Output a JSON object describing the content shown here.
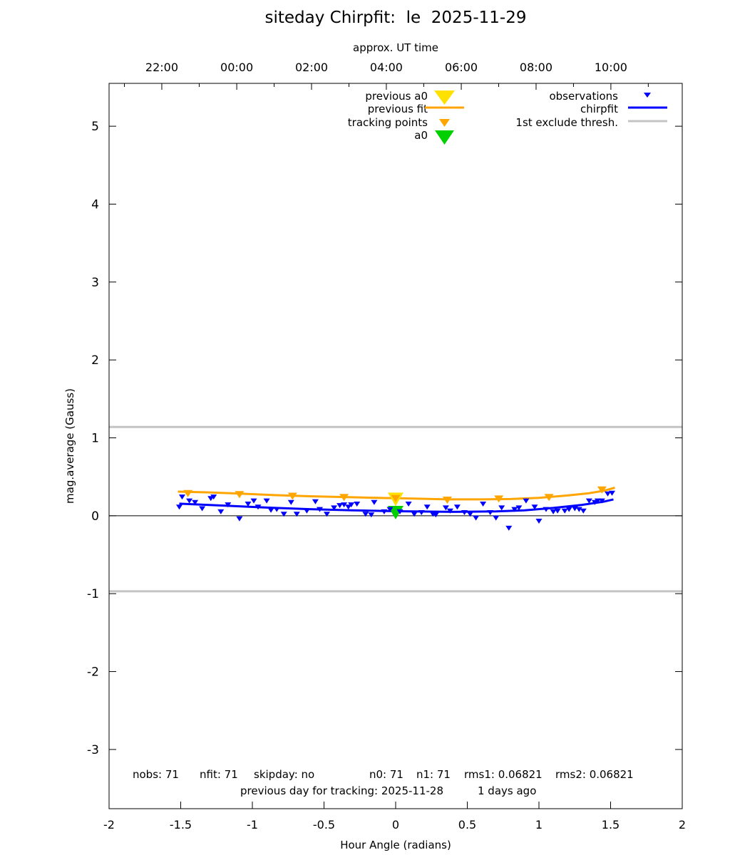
{
  "chart_data": {
    "type": "scatter",
    "title": "siteday Chirpfit:  le  2025-11-29",
    "top_axis": {
      "label": "approx. UT time",
      "major_ticks": [
        {
          "label": "22:00",
          "ha": -1.632
        },
        {
          "label": "00:00",
          "ha": -1.109
        },
        {
          "label": "02:00",
          "ha": -0.587
        },
        {
          "label": "04:00",
          "ha": -0.065
        },
        {
          "label": "06:00",
          "ha": 0.458
        },
        {
          "label": "08:00",
          "ha": 0.98
        },
        {
          "label": "10:00",
          "ha": 1.502
        }
      ],
      "minor_ticks_ha": [
        -1.893,
        -1.371,
        -0.848,
        -0.326,
        0.196,
        0.719,
        1.241,
        1.763
      ]
    },
    "x_axis": {
      "label": "Hour Angle (radians)",
      "range": [
        -2,
        2
      ],
      "ticks": [
        -2,
        -1.5,
        -1,
        -0.5,
        0,
        0.5,
        1,
        1.5,
        2
      ]
    },
    "y_axis": {
      "label": "mag.average (Gauss)",
      "range": [
        -3.76,
        5.55
      ],
      "ticks": [
        -3,
        -2,
        -1,
        0,
        1,
        2,
        3,
        4,
        5
      ]
    },
    "grid": false,
    "zero_line": {
      "color": "#000000",
      "value": 0
    },
    "exclude_thresholds": {
      "color": "#c4c4c4",
      "values": [
        1.14,
        -0.97
      ]
    },
    "series": {
      "observations": {
        "color": "#0000ff",
        "marker": "triangle-down-tiny",
        "points": [
          [
            -1.51,
            0.11
          ],
          [
            -1.49,
            0.24
          ],
          [
            -1.44,
            0.19
          ],
          [
            -1.4,
            0.17
          ],
          [
            -1.35,
            0.09
          ],
          [
            -1.29,
            0.22
          ],
          [
            -1.27,
            0.24
          ],
          [
            -1.22,
            0.05
          ],
          [
            -1.17,
            0.14
          ],
          [
            -1.09,
            -0.04
          ],
          [
            -1.03,
            0.15
          ],
          [
            -0.99,
            0.19
          ],
          [
            -0.96,
            0.11
          ],
          [
            -0.9,
            0.19
          ],
          [
            -0.87,
            0.07
          ],
          [
            -0.83,
            0.08
          ],
          [
            -0.78,
            0.02
          ],
          [
            -0.73,
            0.17
          ],
          [
            -0.69,
            0.02
          ],
          [
            -0.62,
            0.06
          ],
          [
            -0.56,
            0.18
          ],
          [
            -0.53,
            0.08
          ],
          [
            -0.48,
            0.02
          ],
          [
            -0.43,
            0.1
          ],
          [
            -0.39,
            0.13
          ],
          [
            -0.36,
            0.14
          ],
          [
            -0.33,
            0.11
          ],
          [
            -0.31,
            0.14
          ],
          [
            -0.27,
            0.15
          ],
          [
            -0.21,
            0.02
          ],
          [
            -0.17,
            0.01
          ],
          [
            -0.15,
            0.17
          ],
          [
            -0.08,
            0.05
          ],
          [
            -0.04,
            0.08
          ],
          [
            0.03,
            0.05
          ],
          [
            0.09,
            0.15
          ],
          [
            0.13,
            0.02
          ],
          [
            0.18,
            0.04
          ],
          [
            0.22,
            0.11
          ],
          [
            0.26,
            0.02
          ],
          [
            0.28,
            0.01
          ],
          [
            0.35,
            0.1
          ],
          [
            0.38,
            0.06
          ],
          [
            0.43,
            0.11
          ],
          [
            0.48,
            0.04
          ],
          [
            0.52,
            0.02
          ],
          [
            0.56,
            -0.03
          ],
          [
            0.61,
            0.15
          ],
          [
            0.66,
            0.04
          ],
          [
            0.7,
            -0.03
          ],
          [
            0.74,
            0.1
          ],
          [
            0.79,
            -0.16
          ],
          [
            0.83,
            0.08
          ],
          [
            0.86,
            0.1
          ],
          [
            0.91,
            0.19
          ],
          [
            0.97,
            0.11
          ],
          [
            1.0,
            -0.07
          ],
          [
            1.05,
            0.08
          ],
          [
            1.1,
            0.05
          ],
          [
            1.13,
            0.06
          ],
          [
            1.18,
            0.06
          ],
          [
            1.21,
            0.08
          ],
          [
            1.25,
            0.09
          ],
          [
            1.28,
            0.08
          ],
          [
            1.31,
            0.06
          ],
          [
            1.35,
            0.19
          ],
          [
            1.39,
            0.17
          ],
          [
            1.41,
            0.19
          ],
          [
            1.44,
            0.19
          ],
          [
            1.48,
            0.28
          ],
          [
            1.51,
            0.29
          ]
        ]
      },
      "chirpfit": {
        "color": "#0000ff",
        "points": [
          [
            -1.51,
            0.155
          ],
          [
            -1.2,
            0.13
          ],
          [
            -0.9,
            0.105
          ],
          [
            -0.6,
            0.085
          ],
          [
            -0.3,
            0.07
          ],
          [
            0.0,
            0.058
          ],
          [
            0.4,
            0.05
          ],
          [
            0.7,
            0.055
          ],
          [
            0.9,
            0.07
          ],
          [
            1.1,
            0.1
          ],
          [
            1.3,
            0.14
          ],
          [
            1.45,
            0.18
          ],
          [
            1.52,
            0.21
          ]
        ]
      },
      "previous_fit": {
        "color": "#ffa500",
        "points": [
          [
            -1.52,
            0.31
          ],
          [
            -1.3,
            0.3
          ],
          [
            -1.09,
            0.285
          ],
          [
            -0.85,
            0.265
          ],
          [
            -0.6,
            0.25
          ],
          [
            -0.36,
            0.24
          ],
          [
            -0.1,
            0.228
          ],
          [
            0.1,
            0.222
          ],
          [
            0.36,
            0.21
          ],
          [
            0.6,
            0.21
          ],
          [
            0.8,
            0.215
          ],
          [
            1.0,
            0.23
          ],
          [
            1.2,
            0.26
          ],
          [
            1.35,
            0.29
          ],
          [
            1.45,
            0.32
          ],
          [
            1.53,
            0.36
          ]
        ]
      },
      "tracking_points": {
        "color": "#ffa500",
        "marker": "triangle-down-small",
        "points": [
          [
            -1.45,
            0.285
          ],
          [
            -1.09,
            0.27
          ],
          [
            -0.72,
            0.25
          ],
          [
            -0.36,
            0.235
          ],
          [
            0.0,
            0.22
          ],
          [
            0.36,
            0.2
          ],
          [
            0.72,
            0.215
          ],
          [
            1.07,
            0.235
          ],
          [
            1.44,
            0.33
          ]
        ]
      },
      "previous_a0": {
        "color": "#ffe100",
        "marker": "triangle-down-large",
        "point": [
          0.0,
          0.21
        ]
      },
      "a0": {
        "color": "#00d000",
        "marker": "triangle-down-large",
        "point": [
          0.0,
          0.04
        ]
      }
    },
    "legend": {
      "position": "top-inside",
      "left": [
        {
          "label": "previous a0",
          "marker": "triangle-down-large",
          "color": "#ffe100"
        },
        {
          "label": "previous fit",
          "marker": "line",
          "color": "#ffa500"
        },
        {
          "label": "tracking points",
          "marker": "triangle-down-small",
          "color": "#ffa500"
        },
        {
          "label": "a0",
          "marker": "triangle-down-large",
          "color": "#00d000"
        }
      ],
      "right": [
        {
          "label": "observations",
          "marker": "triangle-down-tiny",
          "color": "#0000ff"
        },
        {
          "label": "chirpfit",
          "marker": "line",
          "color": "#0000ff"
        },
        {
          "label": "1st exclude thresh.",
          "marker": "line",
          "color": "#c4c4c4"
        }
      ]
    }
  },
  "stats": {
    "nobs": "nobs: 71",
    "nfit": "nfit: 71",
    "skipday": "skipday: no",
    "n0": "n0: 71",
    "n1": "n1: 71",
    "rms1": "rms1: 0.06821",
    "rms2": "rms2: 0.06821",
    "previous_day": "previous day for tracking:  2025-11-28",
    "days_ago": "1 days ago"
  }
}
